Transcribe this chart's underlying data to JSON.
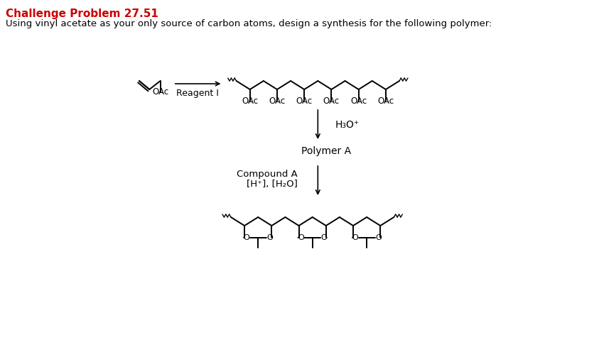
{
  "title": "Challenge Problem 27.51",
  "subtitle": "Using vinyl acetate as your only source of carbon atoms, design a synthesis for the following polymer:",
  "title_color": "#cc0000",
  "bg_color": "#ffffff",
  "reagent1_label": "Reagent I",
  "h3o_label": "H₃O⁺",
  "compoundA_line1": "Compound A",
  "compoundA_line2": "[H⁺], [H₂O]",
  "polymerA_label": "Polymer A",
  "oac_label": "OAc"
}
